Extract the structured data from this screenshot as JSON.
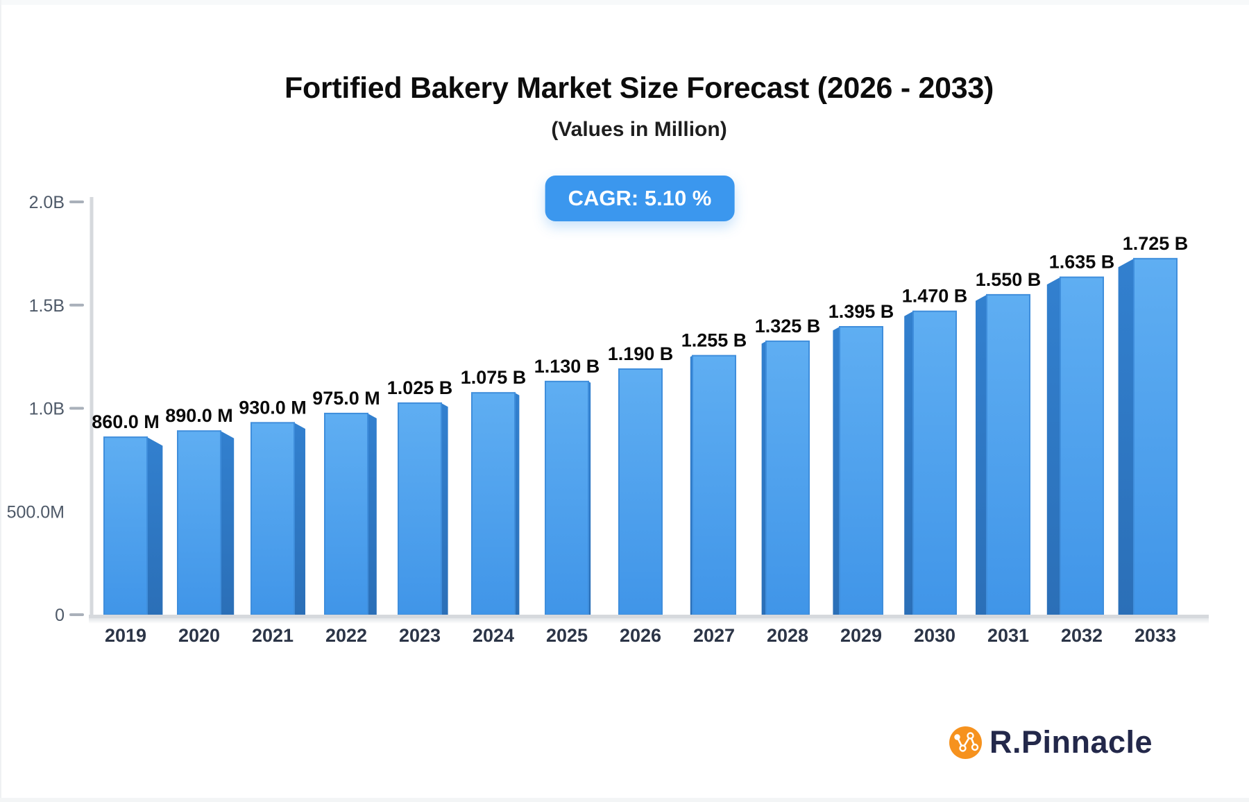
{
  "chart_data": {
    "type": "bar",
    "title": "Fortified Bakery Market Size Forecast (2026 - 2033)",
    "subtitle": "(Values in Million)",
    "cagr_label": "CAGR: 5.10 %",
    "categories": [
      "2019",
      "2020",
      "2021",
      "2022",
      "2023",
      "2024",
      "2025",
      "2026",
      "2027",
      "2028",
      "2029",
      "2030",
      "2031",
      "2032",
      "2033"
    ],
    "values_millions": [
      860,
      890,
      930,
      975,
      1025,
      1075,
      1130,
      1190,
      1255,
      1325,
      1395,
      1470,
      1550,
      1635,
      1725
    ],
    "value_labels": [
      "860.0 M",
      "890.0 M",
      "930.0 M",
      "975.0 M",
      "1.025 B",
      "1.075 B",
      "1.130 B",
      "1.190 B",
      "1.255 B",
      "1.325 B",
      "1.395 B",
      "1.470 B",
      "1.550 B",
      "1.635 B",
      "1.725 B"
    ],
    "xlabel": "",
    "ylabel": "",
    "ylim_millions": [
      0,
      2000
    ],
    "yticks": [
      {
        "label": "2.0B",
        "value_millions": 2000,
        "tick_mark": true
      },
      {
        "label": "1.5B",
        "value_millions": 1500,
        "tick_mark": true
      },
      {
        "label": "1.0B",
        "value_millions": 1000,
        "tick_mark": true
      },
      {
        "label": "500.0M",
        "value_millions": 500,
        "tick_mark": false
      },
      {
        "label": "0",
        "value_millions": 0,
        "tick_mark": true
      }
    ],
    "grid": false,
    "legend": null,
    "projection": "3d-perspective-center-vanishing",
    "style": {
      "bar_front_top": "#5FAEF2",
      "bar_front_bottom": "#4095E8",
      "bar_front_outline": "#3F8EDC",
      "bar_side_top": "#3280CF",
      "bar_side_bottom": "#2B6FB7",
      "axis_line": "#D6D9DD",
      "tick_dash": "#A9B0BA",
      "y_label_color": "#4E5968",
      "x_label_color": "#2C3547",
      "value_label_color": "#0A0A0A",
      "badge_bg": "#3B97EE",
      "badge_text_color": "#FFFFFF"
    }
  },
  "brand": {
    "name": "R.Pinnacle",
    "icon": "network-nodes-icon",
    "icon_bg": "#F6921E",
    "icon_glyph_color": "#FFFFFF",
    "name_color": "#23284A"
  }
}
